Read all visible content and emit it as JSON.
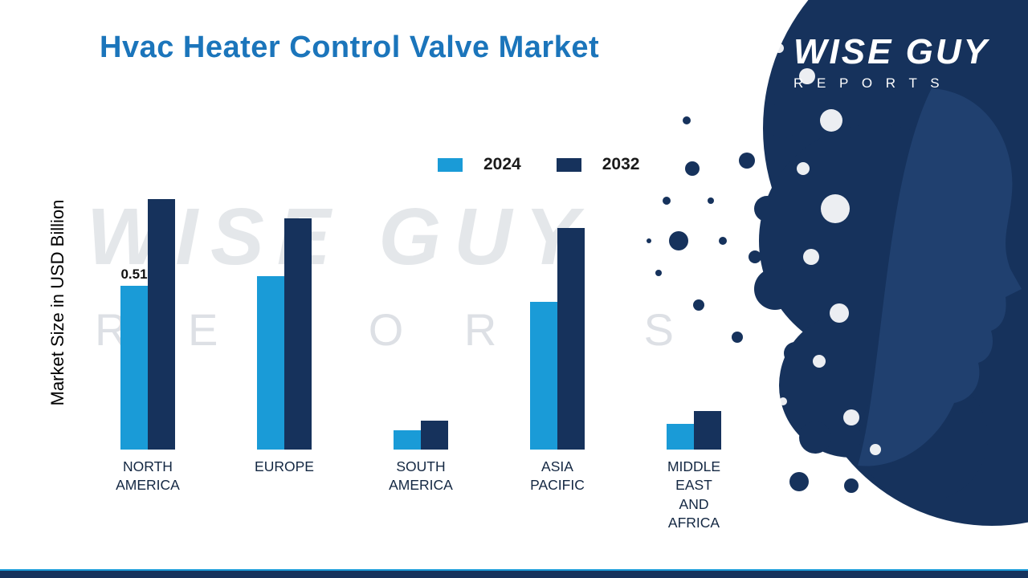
{
  "title": "Hvac Heater Control Valve Market",
  "logo": {
    "line1": "WISE GUY",
    "line2": "R E P O R T S"
  },
  "watermark": {
    "line1": "WISE GUY",
    "line2": "R E P O R T S"
  },
  "ylabel": "Market Size in USD Billion",
  "legend": [
    {
      "label": "2024",
      "color": "#1a9bd7"
    },
    {
      "label": "2032",
      "color": "#16325c"
    }
  ],
  "colors": {
    "title": "#1b75bb",
    "series_2024": "#1a9bd7",
    "series_2032": "#16325c",
    "brand_navy": "#16325c",
    "accent_blue": "#1b9cd8"
  },
  "chart_data": {
    "type": "bar",
    "title": "Hvac Heater Control Valve Market",
    "categories": [
      "NORTH AMERICA",
      "EUROPE",
      "SOUTH AMERICA",
      "ASIA PACIFIC",
      "MIDDLE EAST AND AFRICA"
    ],
    "series": [
      {
        "name": "2024",
        "color": "#1a9bd7",
        "values": [
          0.51,
          0.54,
          0.06,
          0.46,
          0.08
        ],
        "labels": [
          "0.51",
          "",
          "",
          "",
          ""
        ]
      },
      {
        "name": "2032",
        "color": "#16325c",
        "values": [
          0.78,
          0.72,
          0.09,
          0.69,
          0.12
        ],
        "labels": [
          "",
          "",
          "",
          "",
          ""
        ]
      }
    ],
    "xlabel": "",
    "ylabel": "Market Size in USD Billion",
    "ylim": [
      0,
      0.8
    ],
    "grid": false,
    "legend_position": "top-center",
    "value_labels_shown": [
      "North America 2024 = 0.51"
    ]
  }
}
